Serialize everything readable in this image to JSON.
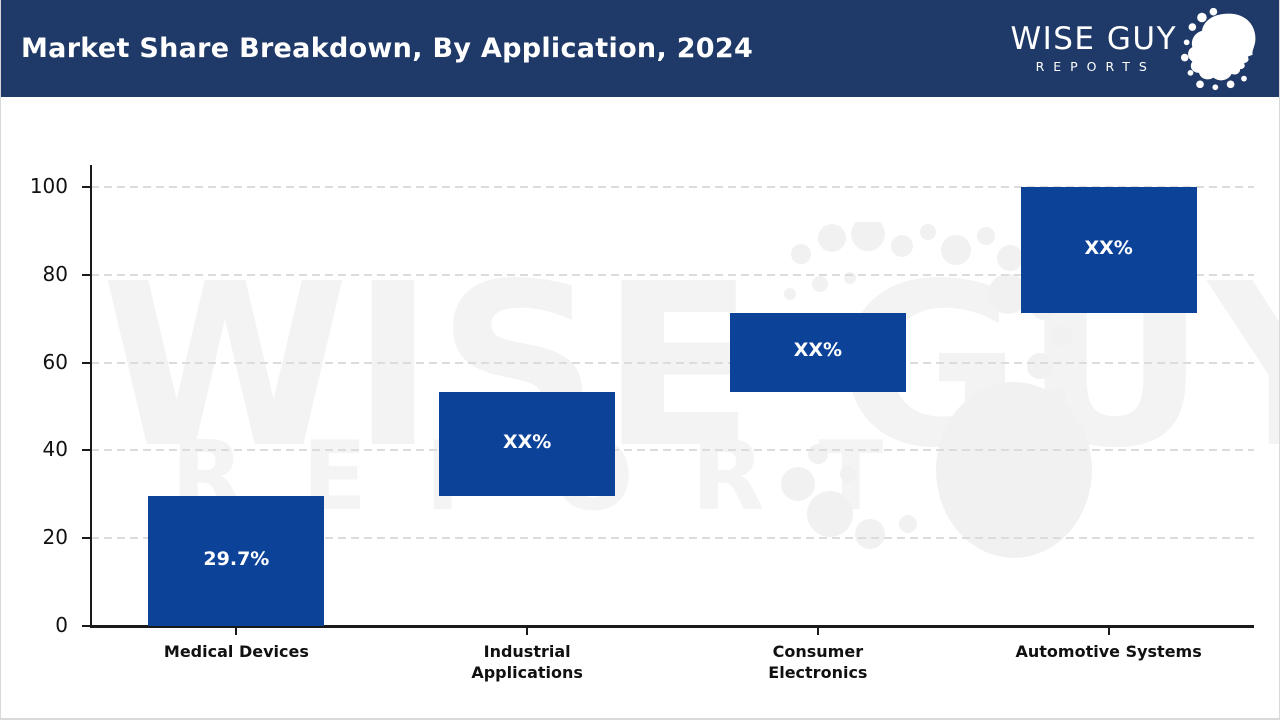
{
  "header": {
    "title": "Market Share Breakdown, By Application, 2024",
    "logo": {
      "brand_top": "WISE GUY",
      "brand_bottom": "REPORTS"
    }
  },
  "watermark": {
    "text_top": "WISE GUY",
    "text_bottom": "REPORTS"
  },
  "chart_data": {
    "type": "bar",
    "subtype": "waterfall",
    "title": "Market Share Breakdown, By Application, 2024",
    "categories": [
      "Medical Devices",
      "Industrial\nApplications",
      "Consumer\nElectronics",
      "Automotive Systems"
    ],
    "bars": [
      {
        "category": "Medical Devices",
        "start": 0,
        "end": 29.7,
        "label": "29.7%"
      },
      {
        "category": "Industrial Applications",
        "start": 29.7,
        "end": 53.3,
        "label": "XX%"
      },
      {
        "category": "Consumer Electronics",
        "start": 53.3,
        "end": 71.3,
        "label": "XX%"
      },
      {
        "category": "Automotive Systems",
        "start": 71.3,
        "end": 100,
        "label": "XX%"
      }
    ],
    "ylim": [
      0,
      100
    ],
    "yticks": [
      0,
      20,
      40,
      60,
      80,
      100
    ],
    "grid": true,
    "legend": "none",
    "xlabel": "",
    "ylabel": ""
  },
  "colors": {
    "header_bg": "#1f3a68",
    "bar": "#0d4299",
    "bar_label": "#ffffff",
    "grid": "#dcdcdc",
    "axis": "#1a1a1a",
    "watermark": "#f3f3f3",
    "title_text": "#ffffff"
  }
}
